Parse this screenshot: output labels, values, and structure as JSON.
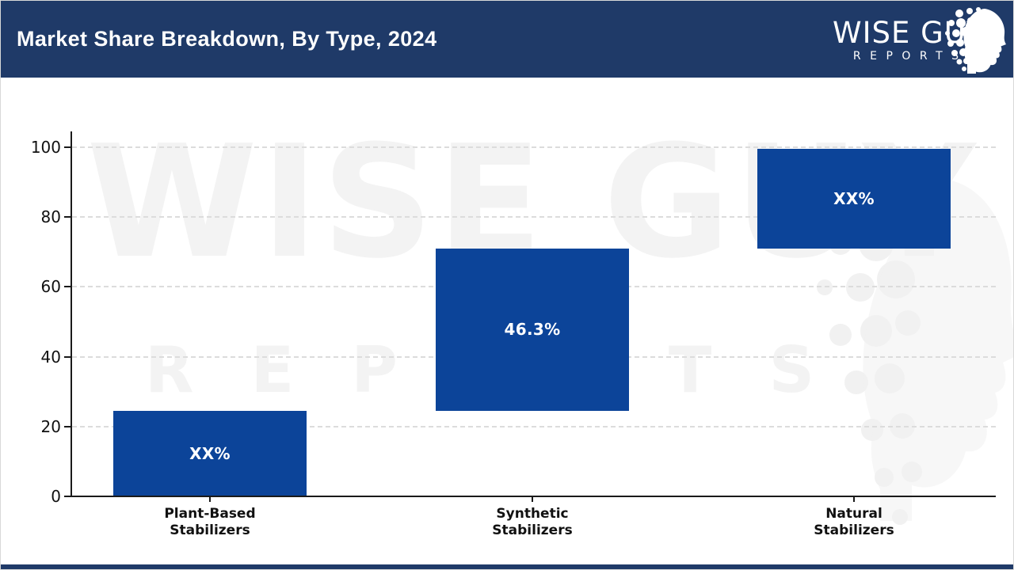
{
  "header": {
    "title": "Market Share Breakdown, By Type, 2024",
    "logo": {
      "line1": "WISE GUY",
      "line2": "REPORTS"
    }
  },
  "watermark": {
    "line1": "WISE GUY",
    "line2": "REPORTS"
  },
  "colors": {
    "header_bg": "#1f3a68",
    "bar_blue": "#0c4499",
    "gridline": "#dcdcdc",
    "watermark_gray": "#f3f3f3"
  },
  "chart_data": {
    "type": "bar",
    "subtype": "stacked-waterfall",
    "title": "Market Share Breakdown, By Type, 2024",
    "categories": [
      [
        "Plant-Based",
        "Stabilizers"
      ],
      [
        "Synthetic",
        "Stabilizers"
      ],
      [
        "Natural",
        "Stabilizers"
      ]
    ],
    "segments": [
      {
        "start": 0,
        "end": 24.6,
        "label": "XX%"
      },
      {
        "start": 24.6,
        "end": 70.9,
        "label": "46.3%"
      },
      {
        "start": 70.9,
        "end": 99.6,
        "label": "XX%"
      }
    ],
    "xlabel": "",
    "ylabel": "",
    "ylim": [
      0,
      100
    ],
    "yticks": [
      0,
      20,
      40,
      60,
      80,
      100
    ],
    "grid": "dashed-horizontal",
    "legend": "none",
    "bar_color": "#0c4499"
  }
}
